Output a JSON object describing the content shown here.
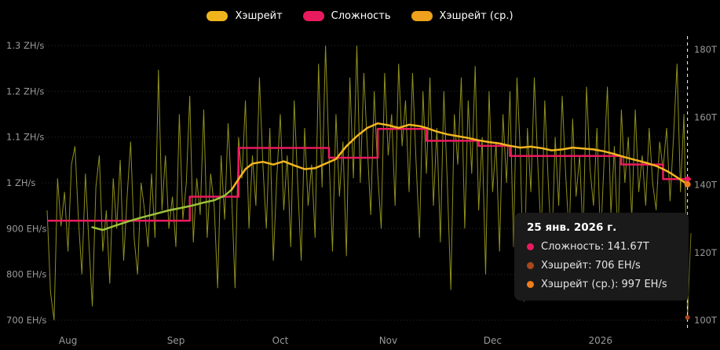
{
  "legend": {
    "items": [
      {
        "label": "Хэшрейт",
        "color": "#f0b41d"
      },
      {
        "label": "Сложность",
        "color": "#ea1a5e"
      },
      {
        "label": "Хэшрейт (ср.)",
        "color": "#eda11c"
      }
    ]
  },
  "tooltip": {
    "date": "25 янв. 2026 г.",
    "rows": [
      {
        "text": "Сложность: 141.67T",
        "color": "#ea1a5e"
      },
      {
        "text": "Хэшрейт: 706 EH/s",
        "color": "#a8481c"
      },
      {
        "text": "Хэшрейт (ср.): 997 EH/s",
        "color": "#f07d1a"
      }
    ]
  },
  "chart_data": {
    "type": "line",
    "title": "",
    "grid": {
      "horizontal": true,
      "style": "dotted",
      "color": "#2e2e2e"
    },
    "x_axis": {
      "days_total": 186,
      "start": "2025-07-26",
      "ticks": [
        {
          "label": "Aug",
          "day": 6
        },
        {
          "label": "Sep",
          "day": 37
        },
        {
          "label": "Oct",
          "day": 67
        },
        {
          "label": "Nov",
          "day": 98
        },
        {
          "label": "Dec",
          "day": 128
        },
        {
          "label": "2026",
          "day": 159
        }
      ]
    },
    "y_axis_left": {
      "unit": "EH/s",
      "range": [
        700,
        1300
      ],
      "ticks": [
        {
          "label": "700 EH/s",
          "value": 700
        },
        {
          "label": "800 EH/s",
          "value": 800
        },
        {
          "label": "900 EH/s",
          "value": 900
        },
        {
          "label": "1 ZH/s",
          "value": 1000
        },
        {
          "label": "1.1 ZH/s",
          "value": 1100
        },
        {
          "label": "1.2 ZH/s",
          "value": 1200
        },
        {
          "label": "1.3 ZH/s",
          "value": 1300
        }
      ]
    },
    "y_axis_right": {
      "unit": "T",
      "range": [
        100,
        180
      ],
      "ticks": [
        {
          "label": "100T",
          "value": 100
        },
        {
          "label": "120T",
          "value": 120
        },
        {
          "label": "140T",
          "value": 140
        },
        {
          "label": "160T",
          "value": 160
        },
        {
          "label": "180T",
          "value": 180
        }
      ]
    },
    "highlight_day": 184,
    "now_marker": {
      "day": 184,
      "color": "#ffffff",
      "style": "dashed"
    },
    "series": [
      {
        "name": "Хэшрейт",
        "axis": "left",
        "color": "#98981e",
        "line_width": 1,
        "start_day": 0,
        "daily_values": [
          940,
          760,
          700,
          1010,
          905,
          980,
          850,
          1040,
          1080,
          920,
          800,
          1020,
          870,
          730,
          990,
          1060,
          850,
          940,
          780,
          1010,
          900,
          1050,
          830,
          970,
          1090,
          880,
          800,
          1000,
          940,
          860,
          1020,
          880,
          1247,
          940,
          1060,
          900,
          970,
          860,
          1150,
          920,
          1000,
          1190,
          870,
          1010,
          930,
          1160,
          880,
          1020,
          950,
          770,
          1060,
          920,
          1130,
          980,
          770,
          1100,
          1010,
          1180,
          900,
          1060,
          950,
          1230,
          1040,
          900,
          1120,
          830,
          1010,
          1150,
          940,
          1060,
          860,
          1180,
          1000,
          830,
          1120,
          950,
          1040,
          880,
          1260,
          990,
          1300,
          1060,
          850,
          1150,
          970,
          1090,
          840,
          1230,
          1010,
          1300,
          1000,
          1240,
          1080,
          930,
          1200,
          1020,
          900,
          1240,
          1060,
          1150,
          950,
          1260,
          1080,
          1180,
          980,
          1240,
          1050,
          880,
          1200,
          1020,
          1230,
          950,
          1120,
          870,
          1200,
          1000,
          766,
          1150,
          1040,
          1230,
          900,
          1180,
          1020,
          1255,
          940,
          1100,
          800,
          1200,
          980,
          1090,
          850,
          1150,
          1000,
          1200,
          860,
          1230,
          1060,
          740,
          1120,
          980,
          1230,
          1040,
          880,
          1180,
          1000,
          850,
          1100,
          950,
          1190,
          1020,
          880,
          1140,
          970,
          1060,
          880,
          1210,
          1030,
          950,
          1120,
          870,
          1040,
          1210,
          930,
          1080,
          870,
          1160,
          1000,
          1100,
          920,
          1160,
          980,
          1060,
          950,
          1120,
          1000,
          940,
          1090,
          1030,
          1120,
          960,
          1100,
          1260,
          980,
          1150,
          706,
          890
        ]
      },
      {
        "name": "Сложность",
        "axis": "right",
        "color": "#ea1a5e",
        "line_width": 2.5,
        "steps": [
          [
            0,
            129.4
          ],
          [
            41,
            136.5
          ],
          [
            55,
            150.9
          ],
          [
            81,
            148.0
          ],
          [
            95,
            156.5
          ],
          [
            109,
            153.0
          ],
          [
            124,
            151.5
          ],
          [
            133,
            148.5
          ],
          [
            165,
            146.0
          ],
          [
            177,
            141.67
          ]
        ]
      },
      {
        "name": "Хэшрейт (ср.)",
        "axis": "left",
        "color": "#f3b61f",
        "early_color": "#9dc13a",
        "early_until_day": 54,
        "line_width": 2.5,
        "end_dot": {
          "day": 184,
          "value": 997
        },
        "points": [
          [
            13,
            903
          ],
          [
            16,
            897
          ],
          [
            19,
            905
          ],
          [
            23,
            915
          ],
          [
            27,
            924
          ],
          [
            31,
            932
          ],
          [
            35,
            940
          ],
          [
            39,
            946
          ],
          [
            42,
            951
          ],
          [
            45,
            957
          ],
          [
            48,
            962
          ],
          [
            51,
            972
          ],
          [
            53,
            985
          ],
          [
            55,
            1008
          ],
          [
            57,
            1030
          ],
          [
            59,
            1042
          ],
          [
            62,
            1046
          ],
          [
            65,
            1040
          ],
          [
            68,
            1047
          ],
          [
            71,
            1038
          ],
          [
            74,
            1030
          ],
          [
            77,
            1032
          ],
          [
            80,
            1042
          ],
          [
            83,
            1052
          ],
          [
            86,
            1080
          ],
          [
            89,
            1102
          ],
          [
            92,
            1120
          ],
          [
            95,
            1130
          ],
          [
            98,
            1126
          ],
          [
            101,
            1120
          ],
          [
            104,
            1127
          ],
          [
            107,
            1124
          ],
          [
            109,
            1120
          ],
          [
            112,
            1112
          ],
          [
            115,
            1106
          ],
          [
            118,
            1102
          ],
          [
            121,
            1098
          ],
          [
            124,
            1093
          ],
          [
            127,
            1089
          ],
          [
            130,
            1086
          ],
          [
            133,
            1081
          ],
          [
            136,
            1077
          ],
          [
            139,
            1079
          ],
          [
            142,
            1076
          ],
          [
            145,
            1071
          ],
          [
            148,
            1073
          ],
          [
            151,
            1077
          ],
          [
            154,
            1075
          ],
          [
            157,
            1073
          ],
          [
            160,
            1069
          ],
          [
            163,
            1063
          ],
          [
            166,
            1056
          ],
          [
            169,
            1050
          ],
          [
            172,
            1044
          ],
          [
            175,
            1037
          ],
          [
            177,
            1030
          ],
          [
            179,
            1022
          ],
          [
            181,
            1012
          ],
          [
            183,
            1002
          ],
          [
            184,
            997
          ]
        ]
      }
    ]
  }
}
